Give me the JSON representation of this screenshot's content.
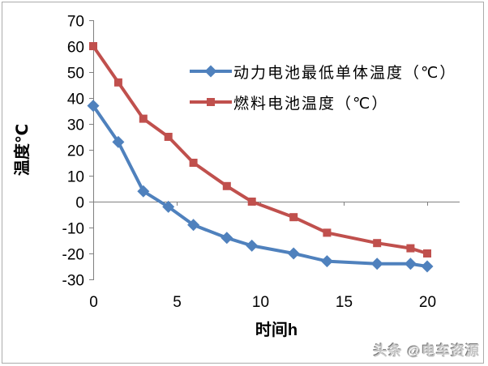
{
  "chart_data": {
    "type": "line",
    "x": [
      0,
      1.5,
      3,
      4.5,
      6,
      8,
      9.5,
      12,
      14,
      17,
      19,
      20
    ],
    "series": [
      {
        "name": "动力电池最低单体温度（℃）",
        "color": "#4f81bd",
        "marker": "diamond",
        "values": [
          37,
          23,
          4,
          -2,
          -9,
          -14,
          -17,
          -20,
          -23,
          -24,
          -24,
          -25
        ]
      },
      {
        "name": "燃料电池温度（℃）",
        "color": "#c0504d",
        "marker": "square",
        "values": [
          60,
          46,
          32,
          25,
          15,
          6,
          0,
          -6,
          -12,
          -16,
          -18,
          -20
        ]
      }
    ],
    "title": "",
    "xlabel": "时间h",
    "ylabel": "温度℃",
    "xlim": [
      0,
      22
    ],
    "ylim": [
      -30,
      70
    ],
    "x_ticks": [
      "0",
      "5",
      "10",
      "15",
      "20"
    ],
    "x_tick_values": [
      0,
      5,
      10,
      15,
      20
    ],
    "y_ticks": [
      "70",
      "60",
      "50",
      "40",
      "30",
      "20",
      "10",
      "0",
      "-10",
      "-20",
      "-30"
    ],
    "y_tick_values": [
      70,
      60,
      50,
      40,
      30,
      20,
      10,
      0,
      -10,
      -20,
      -30
    ],
    "grid": false,
    "axis_color": "#808080",
    "tick_label_color": "#000000",
    "legend_position": "inside-top-right"
  },
  "watermark": {
    "text": "头条 @电车资源"
  }
}
